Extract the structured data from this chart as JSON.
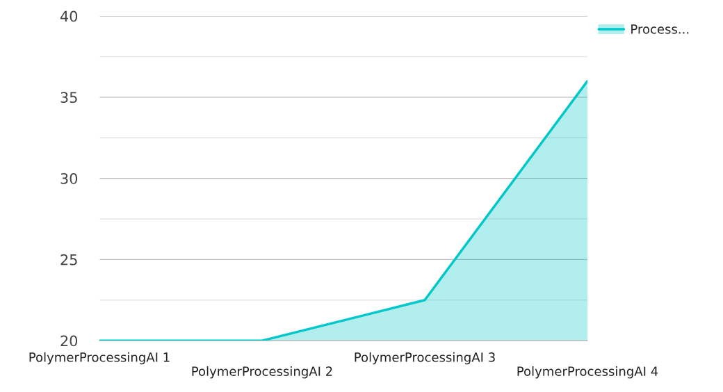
{
  "chart_data": {
    "type": "area",
    "categories": [
      "PolymerProcessingAI 1",
      "PolymerProcessingAI 2",
      "PolymerProcessingAI 3",
      "PolymerProcessingAI 4"
    ],
    "series": [
      {
        "name": "Process...",
        "color": "#00c8c8",
        "values": [
          20,
          20,
          22.5,
          36
        ]
      }
    ],
    "ylim": [
      20,
      40
    ],
    "yticks": [
      20,
      {
        "value": 22.5,
        "label": null
      },
      25,
      {
        "value": 27.5,
        "label": null
      },
      30,
      {
        "value": 32.5,
        "label": null
      },
      35,
      {
        "value": 37.5,
        "label": null
      },
      40
    ],
    "grid": "y",
    "legend": "top right"
  }
}
